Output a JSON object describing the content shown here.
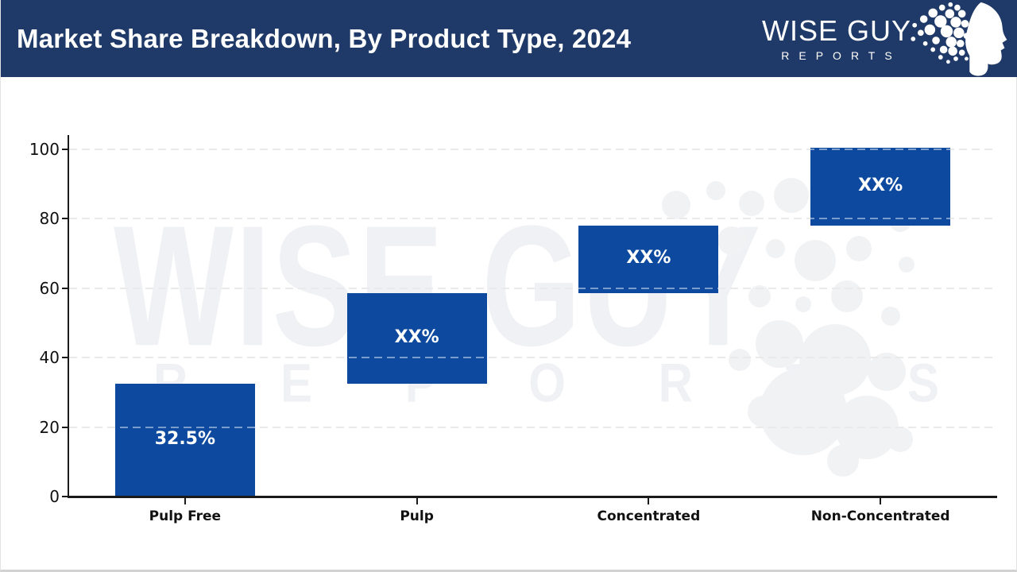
{
  "header": {
    "title": "Market Share Breakdown, By Product Type, 2024",
    "logo": {
      "line1": "WISE GUY",
      "line2": "REPORTS"
    }
  },
  "watermark": {
    "line1": "WISE GUY",
    "line2": "R E P O R T S"
  },
  "colors": {
    "header_bg": "#1f3a68",
    "bar": "#0d4a9f",
    "gridline": "#d9d9d9",
    "axis": "#1a1a1a",
    "watermark": "#f0f1f4",
    "bar_label": "#ffffff"
  },
  "chart_data": {
    "type": "bar",
    "variant": "waterfall",
    "title": "Market Share Breakdown, By Product Type, 2024",
    "categories": [
      "Pulp Free",
      "Pulp",
      "Concentrated",
      "Non-Concentrated"
    ],
    "segments": [
      {
        "category": "Pulp Free",
        "start": 0,
        "end": 32.5,
        "label": "32.5%"
      },
      {
        "category": "Pulp",
        "start": 32.5,
        "end": 58.5,
        "label": "XX%"
      },
      {
        "category": "Concentrated",
        "start": 58.5,
        "end": 78,
        "label": "XX%"
      },
      {
        "category": "Non-Concentrated",
        "start": 78,
        "end": 100.3,
        "label": "XX%"
      }
    ],
    "yticks": [
      0,
      20,
      40,
      60,
      80,
      100
    ],
    "ylim": [
      0,
      104
    ],
    "xlabel": "",
    "ylabel": "",
    "grid": "dashed-horizontal",
    "legend": "none"
  }
}
